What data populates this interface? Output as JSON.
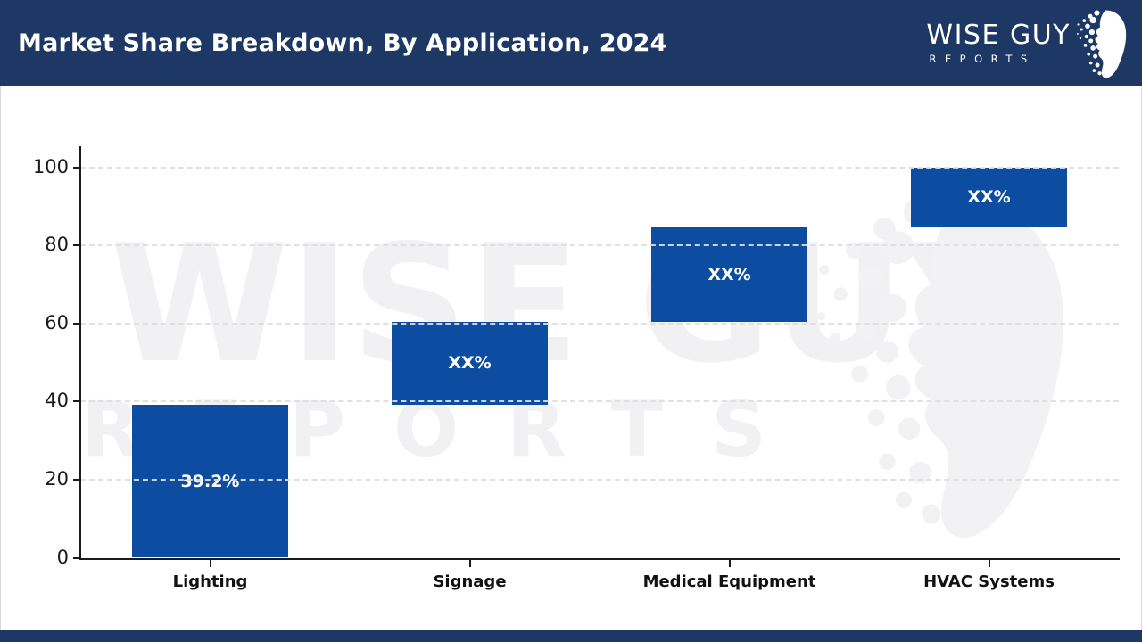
{
  "header": {
    "title": "Market Share Breakdown, By Application, 2024",
    "bg_color": "#1e3865",
    "text_color": "#ffffff",
    "logo": {
      "line1": "WISE GUY",
      "line2": "REPORTS"
    }
  },
  "watermark": {
    "line1": "WISE GUY",
    "line2": "REPORTS",
    "color": "#f1f1f4"
  },
  "footer": {
    "bg_color": "#1e3865"
  },
  "chart_data": {
    "type": "bar",
    "subtype": "waterfall",
    "title": "Market Share Breakdown, By Application, 2024",
    "categories": [
      "Lighting",
      "Signage",
      "Medical Equipment",
      "HVAC Systems"
    ],
    "series": [
      {
        "name": "Market share (%)",
        "segments": [
          {
            "category": "Lighting",
            "start": 0,
            "end": 39.2,
            "label": "39.2%"
          },
          {
            "category": "Signage",
            "start": 39.2,
            "end": 60.4,
            "label": "XX%"
          },
          {
            "category": "Medical Equipment",
            "start": 60.4,
            "end": 84.5,
            "label": "XX%"
          },
          {
            "category": "HVAC Systems",
            "start": 84.5,
            "end": 100,
            "label": "XX%"
          }
        ]
      }
    ],
    "ylim": [
      0,
      100
    ],
    "yticks": [
      0,
      20,
      40,
      60,
      80,
      100
    ],
    "xlabel": "",
    "ylabel": "",
    "grid": "horizontal dashed",
    "legend": "none",
    "bar_color": "#0c4da2",
    "bar_label_color": "#ffffff",
    "axis_color": "#1a1a1a",
    "gridline_color": "#dedede"
  }
}
